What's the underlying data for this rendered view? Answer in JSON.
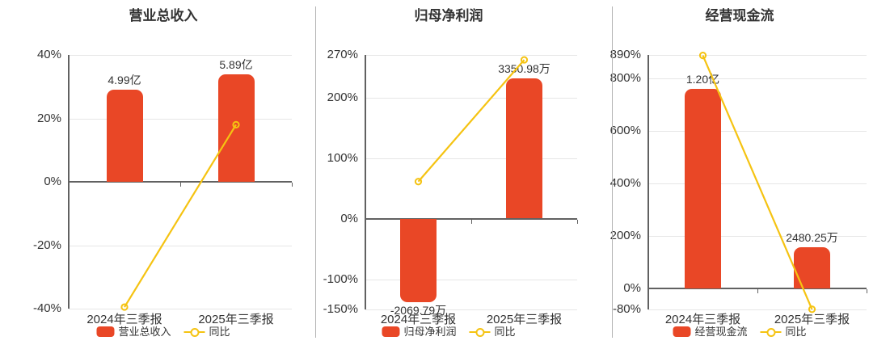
{
  "colors": {
    "background": "#ffffff",
    "bar": "#e94726",
    "line": "#f5c312",
    "title_text": "#333333",
    "axis_text": "#333333",
    "value_label_text": "#333333",
    "grid_line": "#e6e6e6",
    "axis_line": "#616161",
    "divider": "#b3b3b3"
  },
  "chart_data": [
    {
      "type": "bar+line",
      "title": "营业总收入",
      "categories": [
        "2024年三季报",
        "2025年三季报"
      ],
      "bar_series": {
        "name": "营业总收入",
        "values_display": [
          "4.99亿",
          "5.89亿"
        ],
        "plot_pct": [
          29.0,
          34.0
        ]
      },
      "line_series": {
        "name": "同比",
        "values_pct": [
          -39.5,
          18.0
        ]
      },
      "y_axis": {
        "tick_labels": [
          "40%",
          "20%",
          "0%",
          "-20%",
          "-40%"
        ],
        "tick_values": [
          40,
          20,
          0,
          -20,
          -40
        ],
        "max": 40,
        "min": -40
      },
      "legend_position": "bottom"
    },
    {
      "type": "bar+line",
      "title": "归母净利润",
      "categories": [
        "2024年三季报",
        "2025年三季报"
      ],
      "bar_series": {
        "name": "归母净利润",
        "values_display": [
          "-2069.79万",
          "3350.98万"
        ],
        "plot_pct": [
          -138.4,
          231.7
        ]
      },
      "line_series": {
        "name": "同比",
        "values_pct": [
          61.0,
          261.9
        ]
      },
      "y_axis": {
        "tick_labels": [
          "270%",
          "200%",
          "100%",
          "0%",
          "-100%",
          "-150%"
        ],
        "tick_values": [
          270,
          200,
          100,
          0,
          -100,
          -150
        ],
        "max": 270,
        "min": -150
      },
      "legend_position": "bottom"
    },
    {
      "type": "bar+line",
      "title": "经营现金流",
      "categories": [
        "2024年三季报",
        "2025年三季报"
      ],
      "bar_series": {
        "name": "经营现金流",
        "values_display": [
          "1.20亿",
          "2480.25万"
        ],
        "plot_pct": [
          761,
          158
        ]
      },
      "line_series": {
        "name": "同比",
        "values_pct": [
          888,
          -79.3
        ]
      },
      "y_axis": {
        "tick_labels": [
          "890%",
          "800%",
          "600%",
          "400%",
          "200%",
          "0%",
          "-80%"
        ],
        "tick_values": [
          890,
          800,
          600,
          400,
          200,
          0,
          -80
        ],
        "max": 890,
        "min": -80
      },
      "legend_position": "bottom"
    }
  ]
}
